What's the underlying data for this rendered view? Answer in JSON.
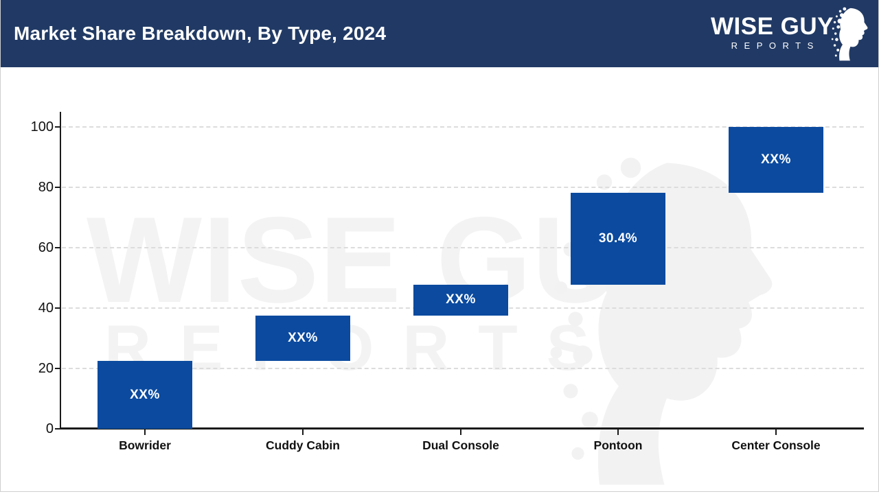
{
  "header": {
    "title": "Market Share Breakdown, By Type, 2024",
    "logo": {
      "line1": "WISE GUY",
      "line2": "REPORTS"
    }
  },
  "watermark": {
    "line1": "WISE GUY",
    "line2": "REPORTS"
  },
  "colors": {
    "header_bg": "#213a65",
    "bar_fill": "#0b4a9f",
    "grid_line": "#dcdcdc",
    "axis_line": "#1a1a1a",
    "bar_label_text": "#ffffff",
    "watermark_text": "#f3f3f3",
    "page_border": "#cfcfcf"
  },
  "chart_data": {
    "type": "bar",
    "subtype": "waterfall",
    "title": "Market Share Breakdown, By Type, 2024",
    "categories": [
      "Bowrider",
      "Cuddy Cabin",
      "Dual Console",
      "Pontoon",
      "Center Console"
    ],
    "segments": [
      {
        "category": "Bowrider",
        "start": 0,
        "end": 22.5,
        "value_label": "XX%"
      },
      {
        "category": "Cuddy Cabin",
        "start": 22.5,
        "end": 37.6,
        "value_label": "XX%"
      },
      {
        "category": "Dual Console",
        "start": 37.6,
        "end": 47.7,
        "value_label": "XX%"
      },
      {
        "category": "Pontoon",
        "start": 47.7,
        "end": 78.1,
        "value_label": "30.4%"
      },
      {
        "category": "Center Console",
        "start": 78.1,
        "end": 100,
        "value_label": "XX%"
      }
    ],
    "yticks": [
      0,
      20,
      40,
      60,
      80,
      100
    ],
    "ylim": [
      0,
      105
    ],
    "xlabel": "",
    "ylabel": "",
    "grid": "horizontal-dashed",
    "legend": "none",
    "bar_value_unit": "%"
  }
}
